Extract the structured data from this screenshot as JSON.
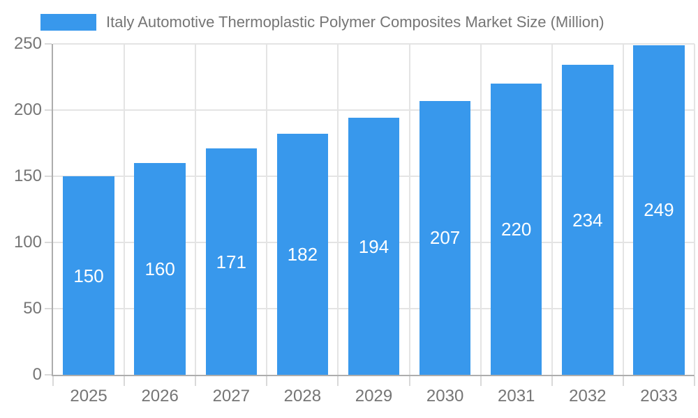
{
  "chart_data": {
    "type": "bar",
    "title": "Italy Automotive Thermoplastic Polymer Composites Market Size (Million)",
    "categories": [
      "2025",
      "2026",
      "2027",
      "2028",
      "2029",
      "2030",
      "2031",
      "2032",
      "2033"
    ],
    "values": [
      150,
      160,
      171,
      182,
      194,
      207,
      220,
      234,
      249
    ],
    "xlabel": "",
    "ylabel": "",
    "ylim": [
      0,
      250
    ],
    "yticks": [
      0,
      50,
      100,
      150,
      200,
      250
    ],
    "grid": true,
    "legend_position": "top-left",
    "colors": {
      "bar": "#3898EC",
      "value_label": "#FFFFFF",
      "axis_line": "#ADADAD",
      "gridline": "#E4E4E4",
      "tick_mark": "#D9D9D9",
      "tick_label": "#757575",
      "legend_text": "#757575",
      "background": "#FFFFFF"
    }
  }
}
